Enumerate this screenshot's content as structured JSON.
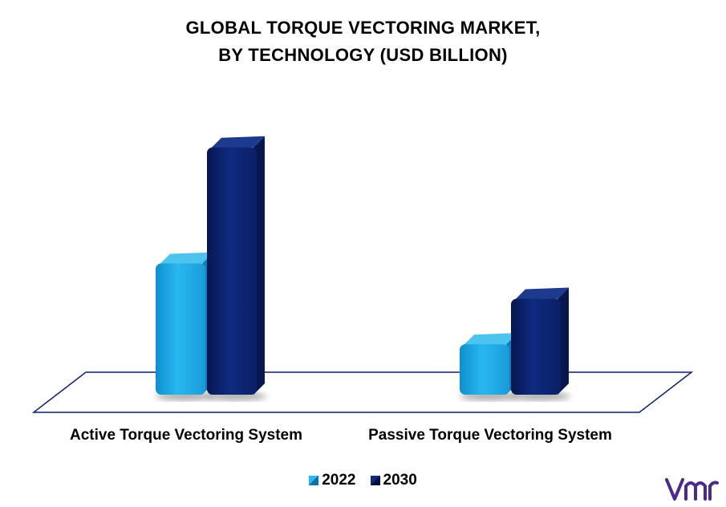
{
  "title_line1": "GLOBAL TORQUE VECTORING MARKET,",
  "title_line2": "BY TECHNOLOGY (USD BILLION)",
  "chart_data": {
    "type": "bar",
    "title": "GLOBAL TORQUE VECTORING MARKET, BY TECHNOLOGY (USD BILLION)",
    "categories": [
      "Active Torque Vectoring System",
      "Passive Torque Vectoring System"
    ],
    "series": [
      {
        "name": "2022",
        "color": "#1fa8e0",
        "values": [
          2.6,
          1.0
        ]
      },
      {
        "name": "2030",
        "color": "#0a1f6e",
        "values": [
          4.9,
          1.9
        ]
      }
    ],
    "ylim": [
      0,
      5.5
    ],
    "legend_position": "bottom",
    "grid": false,
    "style": "3d"
  },
  "colors": {
    "floor_stroke": "#0a1f6e",
    "logo": "#4a2a8a"
  }
}
